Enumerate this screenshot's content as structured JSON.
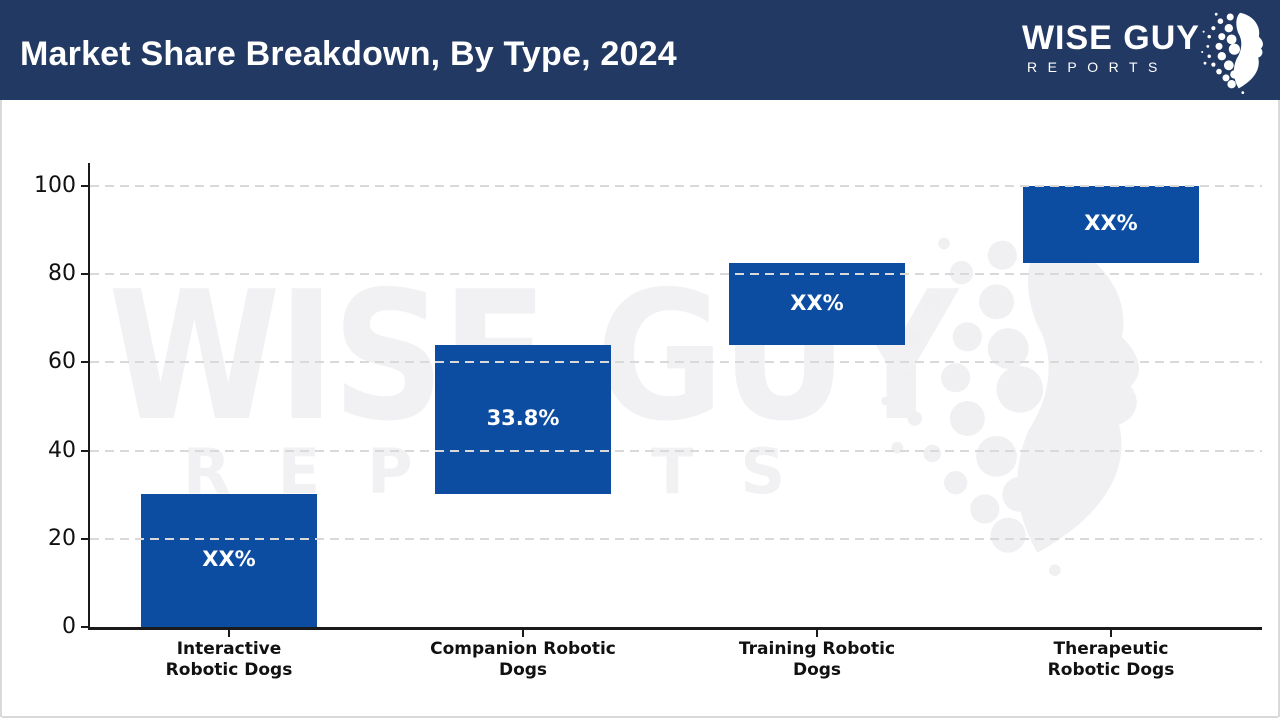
{
  "header": {
    "title": "Market Share Breakdown, By Type, 2024",
    "brand": {
      "name": "WISE GUY",
      "sub": "REPORTS"
    }
  },
  "watermark": {
    "name": "WISE GUY",
    "sub": "REPORTS"
  },
  "colors": {
    "header_bg": "#213963",
    "bar": "#0c4da2",
    "bar_label": "#ffffff",
    "grid": "#d9d9d9",
    "axis": "#1a1a1a",
    "watermark": "#f1f1f4"
  },
  "chart_data": {
    "type": "bar",
    "subtype": "waterfall-floating-bars",
    "title": "Market Share Breakdown, By Type, 2024",
    "categories": [
      "Interactive Robotic Dogs",
      "Companion Robotic Dogs",
      "Training Robotic Dogs",
      "Therapeutic Robotic Dogs"
    ],
    "category_label_lines": [
      [
        "Interactive",
        "Robotic Dogs"
      ],
      [
        "Companion Robotic",
        "Dogs"
      ],
      [
        "Training Robotic",
        "Dogs"
      ],
      [
        "Therapeutic",
        "Robotic Dogs"
      ]
    ],
    "series": [
      {
        "category": "Interactive Robotic Dogs",
        "start": 0,
        "end": 30.2,
        "value": 30.2,
        "label": "XX%"
      },
      {
        "category": "Companion Robotic Dogs",
        "start": 30.2,
        "end": 64.0,
        "value": 33.8,
        "label": "33.8%"
      },
      {
        "category": "Training Robotic Dogs",
        "start": 64.0,
        "end": 82.6,
        "value": 18.6,
        "label": "XX%"
      },
      {
        "category": "Therapeutic Robotic Dogs",
        "start": 82.6,
        "end": 100,
        "value": 17.4,
        "label": "XX%"
      }
    ],
    "xlabel": "",
    "ylabel": "",
    "ylim": [
      0,
      100
    ],
    "yticks": [
      0,
      20,
      40,
      60,
      80,
      100
    ],
    "grid": "horizontal dashed",
    "legend": "none"
  }
}
